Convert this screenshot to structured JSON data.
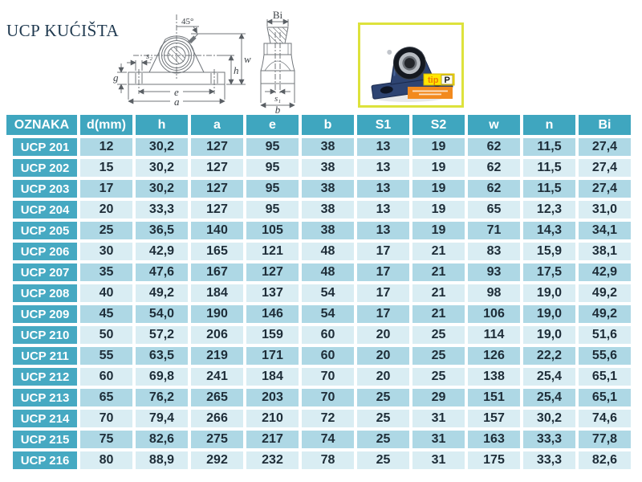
{
  "page": {
    "title": "UCP KUĆIŠTA"
  },
  "colors": {
    "header-teal": "#3fa6bf",
    "label-teal": "#46a9c2",
    "row-dark": "#aed8e5",
    "row-light": "#d9edf3",
    "cell-text": "#1e2d38",
    "title-navy": "#203a50",
    "badge-yellow": "#ffe602",
    "badge-orange-text": "#f07c00",
    "info-orange": "#f28a1e",
    "photo-border-yellow": "#dde23c",
    "bearing-blue": "#2e4472",
    "drawing-line": "#70757a"
  },
  "drawings": {
    "front": {
      "angle": "45°",
      "w": "w",
      "h": "h",
      "e": "e",
      "a": "a",
      "g": "g",
      "s2": "s₂"
    },
    "side": {
      "bi": "Bi",
      "s1": "s₁",
      "b": "b"
    }
  },
  "photo": {
    "badge_tip": "tip",
    "badge_p": "P"
  },
  "table": {
    "headers": [
      "OZNAKA",
      "d(mm)",
      "h",
      "a",
      "e",
      "b",
      "S1",
      "S2",
      "w",
      "n",
      "Bi"
    ],
    "rows": [
      {
        "label": "UCP 201",
        "values": [
          "12",
          "30,2",
          "127",
          "95",
          "38",
          "13",
          "19",
          "62",
          "11,5",
          "27,4"
        ]
      },
      {
        "label": "UCP 202",
        "values": [
          "15",
          "30,2",
          "127",
          "95",
          "38",
          "13",
          "19",
          "62",
          "11,5",
          "27,4"
        ]
      },
      {
        "label": "UCP 203",
        "values": [
          "17",
          "30,2",
          "127",
          "95",
          "38",
          "13",
          "19",
          "62",
          "11,5",
          "27,4"
        ]
      },
      {
        "label": "UCP 204",
        "values": [
          "20",
          "33,3",
          "127",
          "95",
          "38",
          "13",
          "19",
          "65",
          "12,3",
          "31,0"
        ]
      },
      {
        "label": "UCP 205",
        "values": [
          "25",
          "36,5",
          "140",
          "105",
          "38",
          "13",
          "19",
          "71",
          "14,3",
          "34,1"
        ]
      },
      {
        "label": "UCP 206",
        "values": [
          "30",
          "42,9",
          "165",
          "121",
          "48",
          "17",
          "21",
          "83",
          "15,9",
          "38,1"
        ]
      },
      {
        "label": "UCP 207",
        "values": [
          "35",
          "47,6",
          "167",
          "127",
          "48",
          "17",
          "21",
          "93",
          "17,5",
          "42,9"
        ]
      },
      {
        "label": "UCP 208",
        "values": [
          "40",
          "49,2",
          "184",
          "137",
          "54",
          "17",
          "21",
          "98",
          "19,0",
          "49,2"
        ]
      },
      {
        "label": "UCP 209",
        "values": [
          "45",
          "54,0",
          "190",
          "146",
          "54",
          "17",
          "21",
          "106",
          "19,0",
          "49,2"
        ]
      },
      {
        "label": "UCP 210",
        "values": [
          "50",
          "57,2",
          "206",
          "159",
          "60",
          "20",
          "25",
          "114",
          "19,0",
          "51,6"
        ]
      },
      {
        "label": "UCP 211",
        "values": [
          "55",
          "63,5",
          "219",
          "171",
          "60",
          "20",
          "25",
          "126",
          "22,2",
          "55,6"
        ]
      },
      {
        "label": "UCP 212",
        "values": [
          "60",
          "69,8",
          "241",
          "184",
          "70",
          "20",
          "25",
          "138",
          "25,4",
          "65,1"
        ]
      },
      {
        "label": "UCP 213",
        "values": [
          "65",
          "76,2",
          "265",
          "203",
          "70",
          "25",
          "29",
          "151",
          "25,4",
          "65,1"
        ]
      },
      {
        "label": "UCP 214",
        "values": [
          "70",
          "79,4",
          "266",
          "210",
          "72",
          "25",
          "31",
          "157",
          "30,2",
          "74,6"
        ]
      },
      {
        "label": "UCP 215",
        "values": [
          "75",
          "82,6",
          "275",
          "217",
          "74",
          "25",
          "31",
          "163",
          "33,3",
          "77,8"
        ]
      },
      {
        "label": "UCP 216",
        "values": [
          "80",
          "88,9",
          "292",
          "232",
          "78",
          "25",
          "31",
          "175",
          "33,3",
          "82,6"
        ]
      }
    ]
  }
}
